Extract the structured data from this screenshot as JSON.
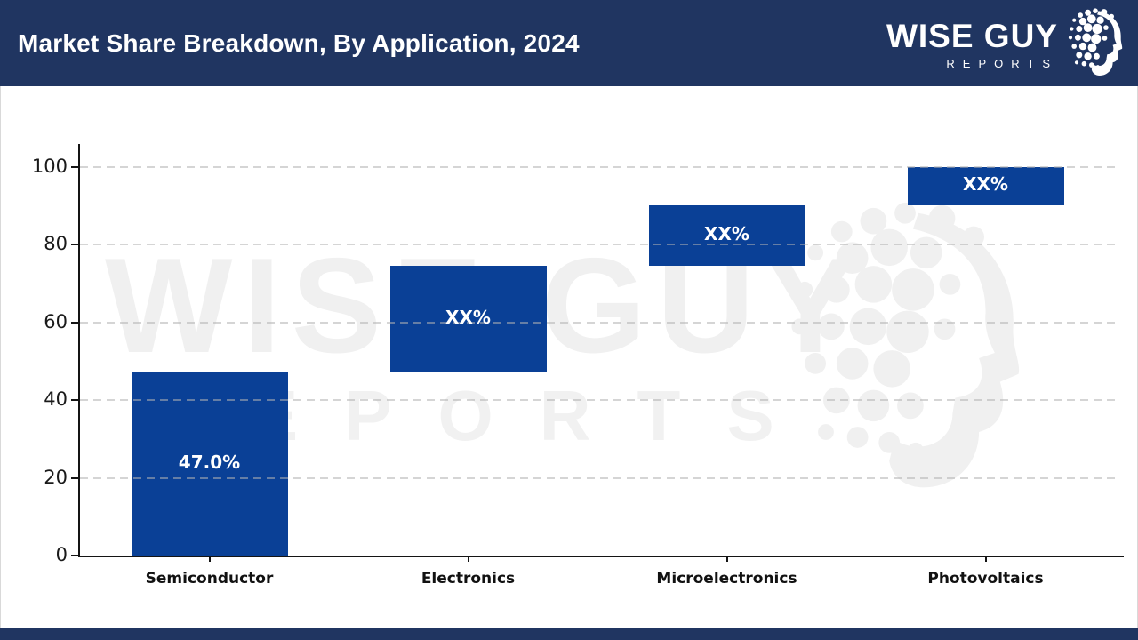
{
  "header": {
    "title": "Market Share Breakdown, By Application, 2024"
  },
  "logo": {
    "name": "WISE GUY",
    "subtitle": "REPORTS"
  },
  "watermark": {
    "line1": "WISE GUY",
    "line2": "REPORTS"
  },
  "colors": {
    "header_bg": "#203561",
    "bar": "#0a4096",
    "grid": "#d9d9d9",
    "axis": "#141414",
    "bar_label": "#ffffff",
    "watermark": "#f0f0f0"
  },
  "chart_data": {
    "type": "bar",
    "subtype": "waterfall",
    "title": "Market Share Breakdown, By Application, 2024",
    "categories": [
      "Semiconductor",
      "Electronics",
      "Microelectronics",
      "Photovoltaics"
    ],
    "segments": [
      {
        "category": "Semiconductor",
        "start": 0,
        "end": 47.0,
        "label": "47.0%"
      },
      {
        "category": "Electronics",
        "start": 47.0,
        "end": 74.5,
        "label": "XX%"
      },
      {
        "category": "Microelectronics",
        "start": 74.5,
        "end": 90.0,
        "label": "XX%"
      },
      {
        "category": "Photovoltaics",
        "start": 90.0,
        "end": 100.0,
        "label": "XX%"
      }
    ],
    "xlabel": "",
    "ylabel": "",
    "ylim": [
      0,
      100
    ],
    "yticks": [
      0,
      20,
      40,
      60,
      80,
      100
    ],
    "grid": "horizontal-dashed",
    "legend": "none",
    "bar_color": "#0a4096",
    "value_label_color": "#ffffff"
  }
}
